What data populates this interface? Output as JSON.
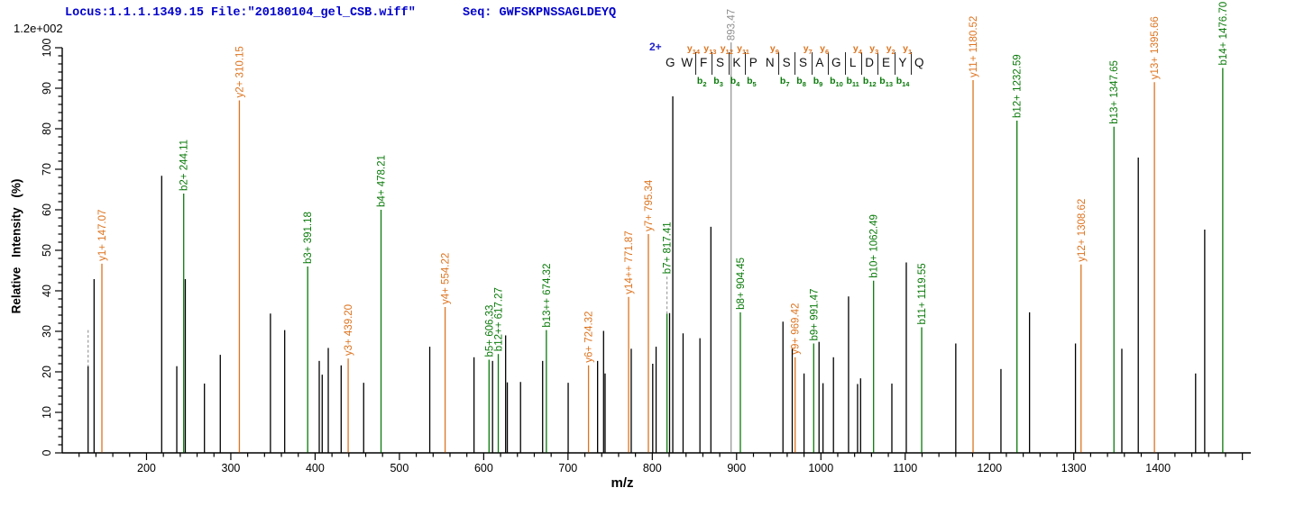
{
  "header": {
    "locus": "Locus:1.1.1.1349.15 File:\"20180104_gel_CSB.wiff\"",
    "seq": "Seq: GWFSKPNSSAGLDEYQ",
    "max_intensity": "1.2e+002"
  },
  "colors": {
    "y_ion": "#DD7420",
    "b_ion": "#0A7A0A",
    "peak_black": "#000000",
    "precursor_gray": "#8F8F8F",
    "header_blue": "#0000CC",
    "charge_blue": "#2222CC",
    "axis_black": "#000000"
  },
  "sequence_ladder": {
    "charge": "2+",
    "residues": [
      "G",
      "W",
      "F",
      "S",
      "K",
      "P",
      "N",
      "S",
      "S",
      "A",
      "G",
      "L",
      "D",
      "E",
      "Y",
      "Q"
    ],
    "cleavages": [
      {
        "after": 2,
        "y": "y14",
        "b": "b2"
      },
      {
        "after": 3,
        "y": "y13",
        "b": "b3"
      },
      {
        "after": 4,
        "y": "y12",
        "b": "b4"
      },
      {
        "after": 5,
        "y": "y11",
        "b": "b5"
      },
      {
        "after": 7,
        "y": "y9",
        "b": "b7"
      },
      {
        "after": 8,
        "y": "",
        "b": "b8"
      },
      {
        "after": 9,
        "y": "y7",
        "b": "b9"
      },
      {
        "after": 10,
        "y": "y6",
        "b": "b10"
      },
      {
        "after": 11,
        "y": "",
        "b": "b11"
      },
      {
        "after": 12,
        "y": "y4",
        "b": "b12"
      },
      {
        "after": 13,
        "y": "y3",
        "b": "b13"
      },
      {
        "after": 14,
        "y": "y2",
        "b": "b14"
      },
      {
        "after": 15,
        "y": "y1",
        "b": ""
      }
    ]
  },
  "chart_data": {
    "type": "bar",
    "title": "MS/MS fragment ion spectrum of peptide GWFSKPNSSAGLDEYQ (2+)",
    "xlabel": "m/z",
    "ylabel": "Relative Intensity (%)",
    "x_range": [
      100,
      1510
    ],
    "y_range": [
      0,
      100
    ],
    "x_labeled_ticks": [
      200,
      300,
      400,
      500,
      600,
      700,
      800,
      900,
      1000,
      1100,
      1200,
      1300,
      1400
    ],
    "x_minor_step": 20,
    "y_labeled_ticks": [
      0,
      10,
      20,
      30,
      40,
      50,
      60,
      70,
      80,
      90,
      100
    ],
    "y_minor_step": 2,
    "grid": false,
    "precursor": {
      "mz": 893.47,
      "label": "893.47",
      "intensity": 101.3
    },
    "labeled_peaks": [
      {
        "label": "y1+ 147.07",
        "ion": "y",
        "mz": 147.07,
        "intensity": 46.7
      },
      {
        "label": "b2+ 244.11",
        "ion": "b",
        "mz": 244.11,
        "intensity": 64.0
      },
      {
        "label": "y2+ 310.15",
        "ion": "y",
        "mz": 310.15,
        "intensity": 87.0
      },
      {
        "label": "b3+ 391.18",
        "ion": "b",
        "mz": 391.18,
        "intensity": 46.0
      },
      {
        "label": "y3+ 439.20",
        "ion": "y",
        "mz": 439.2,
        "intensity": 23.3
      },
      {
        "label": "b4+ 478.21",
        "ion": "b",
        "mz": 478.21,
        "intensity": 60.0
      },
      {
        "label": "y4+ 554.22",
        "ion": "y",
        "mz": 554.22,
        "intensity": 36.0
      },
      {
        "label": "b5+ 606.33",
        "ion": "b",
        "mz": 606.33,
        "intensity": 23.0
      },
      {
        "label": "b12++ 617.27",
        "ion": "b",
        "mz": 617.27,
        "intensity": 24.4
      },
      {
        "label": "b13++ 674.32",
        "ion": "b",
        "mz": 674.32,
        "intensity": 30.3
      },
      {
        "label": "y6+ 724.32",
        "ion": "y",
        "mz": 724.32,
        "intensity": 21.6
      },
      {
        "label": "y14++ 771.87",
        "ion": "y",
        "mz": 771.87,
        "intensity": 38.5
      },
      {
        "label": "y7+ 795.34",
        "ion": "y",
        "mz": 795.34,
        "intensity": 54.0
      },
      {
        "label": "b7+ 817.41",
        "ion": "b",
        "mz": 817.41,
        "intensity": 34.4,
        "label_at": 43.5,
        "connector": "dashed"
      },
      {
        "label": "b8+ 904.45",
        "ion": "b",
        "mz": 904.45,
        "intensity": 34.7
      },
      {
        "label": "y9+ 969.42",
        "ion": "y",
        "mz": 969.42,
        "intensity": 23.6
      },
      {
        "label": "b9+ 991.47",
        "ion": "b",
        "mz": 991.47,
        "intensity": 27.0
      },
      {
        "label": "b10+ 1062.49",
        "ion": "b",
        "mz": 1062.49,
        "intensity": 42.5
      },
      {
        "label": "b11+ 1119.55",
        "ion": "b",
        "mz": 1119.55,
        "intensity": 31.0
      },
      {
        "label": "y11+ 1180.52",
        "ion": "y",
        "mz": 1180.52,
        "intensity": 92.0
      },
      {
        "label": "b12+ 1232.59",
        "ion": "b",
        "mz": 1232.59,
        "intensity": 82.0
      },
      {
        "label": "y12+ 1308.62",
        "ion": "y",
        "mz": 1308.62,
        "intensity": 46.5
      },
      {
        "label": "b13+ 1347.65",
        "ion": "b",
        "mz": 1347.65,
        "intensity": 80.5
      },
      {
        "label": "y13+ 1395.66",
        "ion": "y",
        "mz": 1395.66,
        "intensity": 91.5
      },
      {
        "label": "b14+ 1476.70",
        "ion": "b",
        "mz": 1476.7,
        "intensity": 95.0
      }
    ],
    "unlabeled_peaks": [
      [
        130.7,
        21.4
      ],
      [
        137.8,
        42.9
      ],
      [
        218.0,
        68.4
      ],
      [
        235.9,
        21.4
      ],
      [
        246.0,
        42.9
      ],
      [
        268.7,
        17.1
      ],
      [
        287.5,
        24.2
      ],
      [
        347.0,
        34.4
      ],
      [
        363.9,
        30.3
      ],
      [
        404.9,
        22.7
      ],
      [
        408.4,
        19.3
      ],
      [
        415.6,
        25.9
      ],
      [
        430.9,
        21.6
      ],
      [
        457.6,
        17.3
      ],
      [
        536.0,
        26.2
      ],
      [
        588.5,
        23.6
      ],
      [
        610.5,
        22.7
      ],
      [
        626.0,
        29.0
      ],
      [
        628.0,
        17.4
      ],
      [
        643.7,
        17.5
      ],
      [
        669.9,
        22.7
      ],
      [
        700.2,
        17.3
      ],
      [
        735.1,
        22.7
      ],
      [
        742.2,
        30.1
      ],
      [
        744.0,
        19.6
      ],
      [
        775.0,
        25.7
      ],
      [
        800.5,
        22.0
      ],
      [
        804.5,
        26.2
      ],
      [
        820.5,
        34.5
      ],
      [
        824.3,
        88.0
      ],
      [
        836.5,
        29.5
      ],
      [
        856.5,
        28.3
      ],
      [
        869.5,
        55.8
      ],
      [
        955.0,
        32.4
      ],
      [
        966.0,
        25.7
      ],
      [
        980.0,
        19.6
      ],
      [
        997.8,
        27.4
      ],
      [
        1002.5,
        17.2
      ],
      [
        1014.9,
        23.6
      ],
      [
        1032.8,
        38.6
      ],
      [
        1043.5,
        17.0
      ],
      [
        1047.1,
        18.4
      ],
      [
        1084.2,
        17.1
      ],
      [
        1101.3,
        47.0
      ],
      [
        1160.0,
        27.0
      ],
      [
        1213.6,
        20.7
      ],
      [
        1247.5,
        34.7
      ],
      [
        1302.0,
        27.0
      ],
      [
        1357.0,
        25.7
      ],
      [
        1376.5,
        72.9
      ],
      [
        1444.5,
        19.6
      ],
      [
        1455.3,
        55.1
      ]
    ],
    "dashed_segments": [
      {
        "mz": 130.7,
        "from": 21.4,
        "to": 30.3
      }
    ]
  }
}
